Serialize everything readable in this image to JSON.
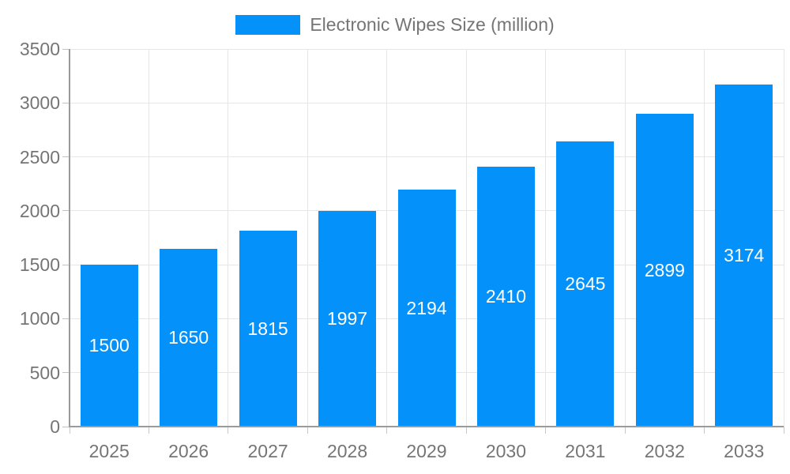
{
  "chart_data": {
    "type": "bar",
    "title": "Electronic Wipes Size (million)",
    "categories": [
      "2025",
      "2026",
      "2027",
      "2028",
      "2029",
      "2030",
      "2031",
      "2032",
      "2033"
    ],
    "series": [
      {
        "name": "Electronic Wipes Size (million)",
        "values": [
          1500,
          1650,
          1815,
          1997,
          2194,
          2410,
          2645,
          2899,
          3174
        ]
      }
    ],
    "value_labels": [
      "1500",
      "1650",
      "1815",
      "1997",
      "2194",
      "2410",
      "2645",
      "2899",
      "3174"
    ],
    "yticks": [
      0,
      500,
      1000,
      1500,
      2000,
      2500,
      3000,
      3500
    ],
    "ylim": [
      0,
      3500
    ],
    "xlabel": "",
    "ylabel": "",
    "grid": true,
    "legend_position": "top-center",
    "colors": {
      "bar": "#0591FA",
      "axis_line": "#9B9B9B",
      "gridline": "#E6E6E6",
      "tick": "#C2C2C2",
      "axis_text": "#757575",
      "value_label": "#FFFFFF",
      "background": "#FFFFFF"
    }
  }
}
